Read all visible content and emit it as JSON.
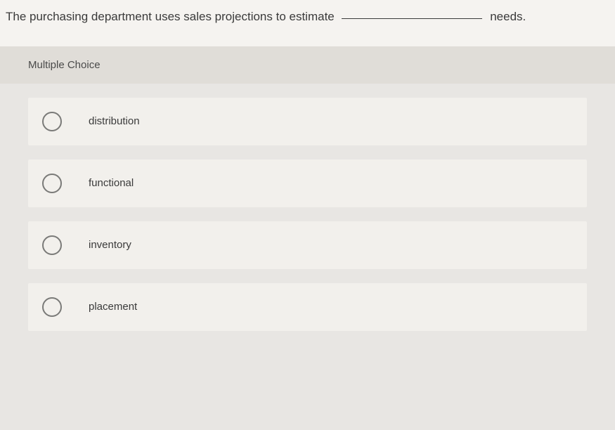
{
  "question": {
    "prefix": "The purchasing department uses sales projections to estimate",
    "suffix": "needs."
  },
  "section_label": "Multiple Choice",
  "options": [
    {
      "label": "distribution",
      "selected": false
    },
    {
      "label": "functional",
      "selected": false
    },
    {
      "label": "inventory",
      "selected": false
    },
    {
      "label": "placement",
      "selected": false
    }
  ],
  "colors": {
    "page_bg": "#e8e6e3",
    "question_bg": "#f5f3f0",
    "header_bg": "#e0ddd8",
    "option_bg": "#f2f0ec",
    "text_color": "#3a3a3a",
    "radio_border": "#7a7a78"
  }
}
